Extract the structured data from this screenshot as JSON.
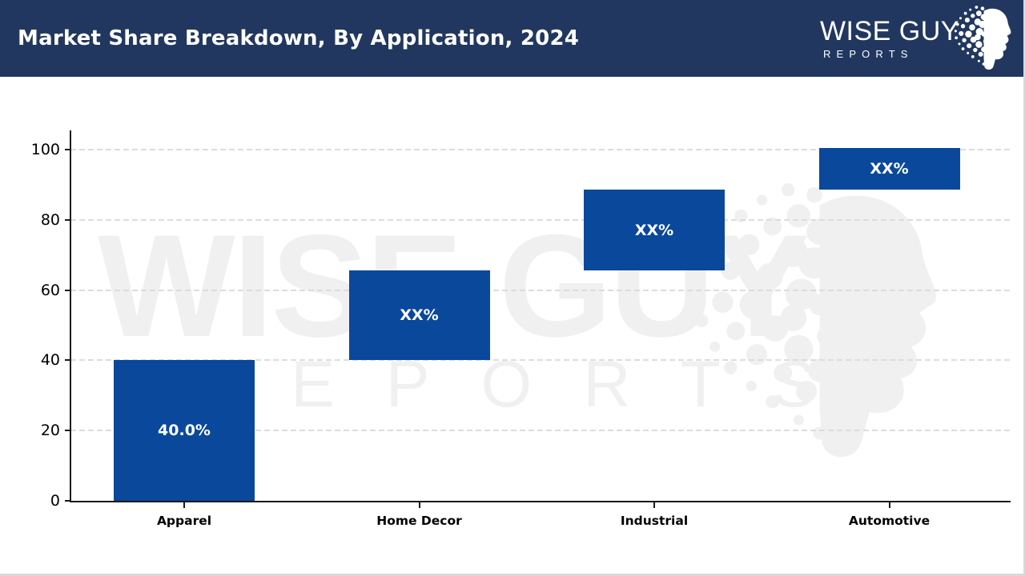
{
  "header": {
    "title": "Market Share Breakdown, By Application, 2024",
    "logo": {
      "line1": "WISE GUY",
      "line2": "REPORTS"
    }
  },
  "watermark": {
    "line1": "WISE GUY",
    "line2": "REPORTS"
  },
  "colors": {
    "header_bg": "#21375f",
    "bar": "#0a489b",
    "bar_label": "#ffffff",
    "grid": "#dcdcdc",
    "axis": "#1a1a1a",
    "watermark": "#f0f0f0",
    "title_text": "#ffffff"
  },
  "chart_data": {
    "type": "bar",
    "subtype": "waterfall",
    "title": "Market Share Breakdown, By Application, 2024",
    "categories": [
      "Apparel",
      "Home Decor",
      "Industrial",
      "Automotive"
    ],
    "segments": [
      {
        "category": "Apparel",
        "start": 0,
        "end": 40,
        "value_label": "40.0%"
      },
      {
        "category": "Home Decor",
        "start": 40,
        "end": 65.5,
        "value_label": "XX%"
      },
      {
        "category": "Industrial",
        "start": 65.5,
        "end": 88.5,
        "value_label": "XX%"
      },
      {
        "category": "Automotive",
        "start": 88.5,
        "end": 100.5,
        "value_label": "XX%"
      }
    ],
    "xlabel": "",
    "ylabel": "",
    "yticks": [
      0,
      20,
      40,
      60,
      80,
      100
    ],
    "ylim": [
      0,
      105
    ],
    "grid": {
      "axis": "y",
      "style": "dashed"
    },
    "legend": null,
    "bar_color": "#0a489b",
    "bar_label_color": "#ffffff"
  }
}
